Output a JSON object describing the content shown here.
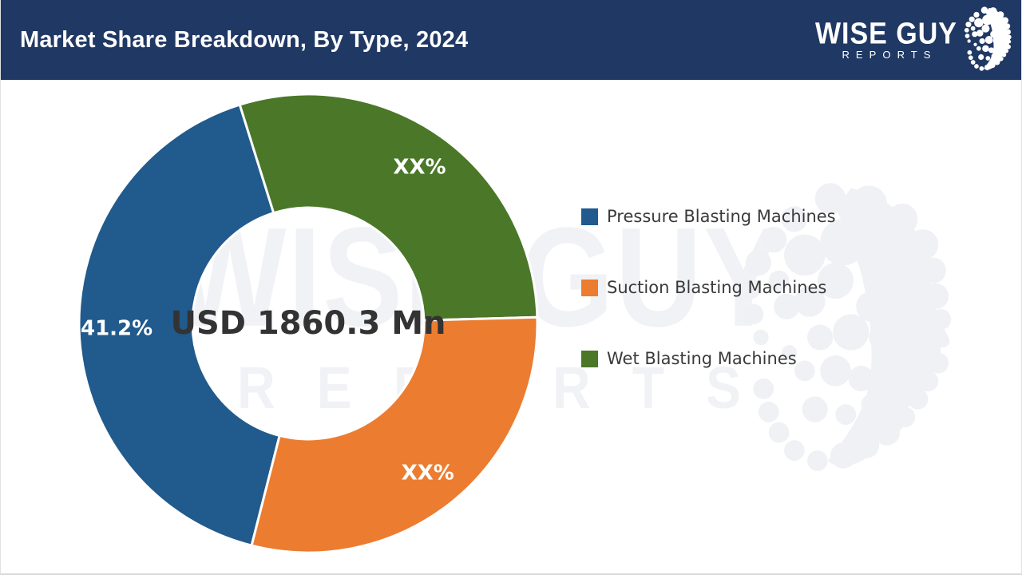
{
  "theme": {
    "header_bg": "#203864",
    "watermark_color": "#f1f2f5",
    "center_text_color": "#333333",
    "legend_text_color": "#3a3a3a"
  },
  "header": {
    "title": "Market Share Breakdown, By Type, 2024",
    "logo": {
      "line1": "WISE GUY",
      "line2": "REPORTS"
    }
  },
  "watermark": {
    "line1": "WISE GUY",
    "line2": "REPORTS"
  },
  "chart_data": {
    "type": "pie",
    "subtype": "donut",
    "title": "Market Share Breakdown, By Type, 2024",
    "center_label": "USD 1860.3 Mn",
    "start_angle_deg_clockwise_from_top": 194.3,
    "direction": "clockwise",
    "hole_ratio": 0.505,
    "slices": [
      {
        "name": "Pressure Blasting Machines",
        "value_pct": 41.2,
        "display_label": "41.2%",
        "color": "#215a8c"
      },
      {
        "name": "Wet Blasting Machines",
        "value_pct": 29.4,
        "display_label": "XX%",
        "color": "#4a7728"
      },
      {
        "name": "Suction Blasting Machines",
        "value_pct": 29.4,
        "display_label": "XX%",
        "color": "#ec7c30"
      }
    ]
  },
  "legend": {
    "items": [
      {
        "label": "Pressure Blasting Machines",
        "color": "#215a8c"
      },
      {
        "label": "Suction Blasting Machines",
        "color": "#ec7c30"
      },
      {
        "label": "Wet Blasting Machines",
        "color": "#4a7728"
      }
    ]
  }
}
